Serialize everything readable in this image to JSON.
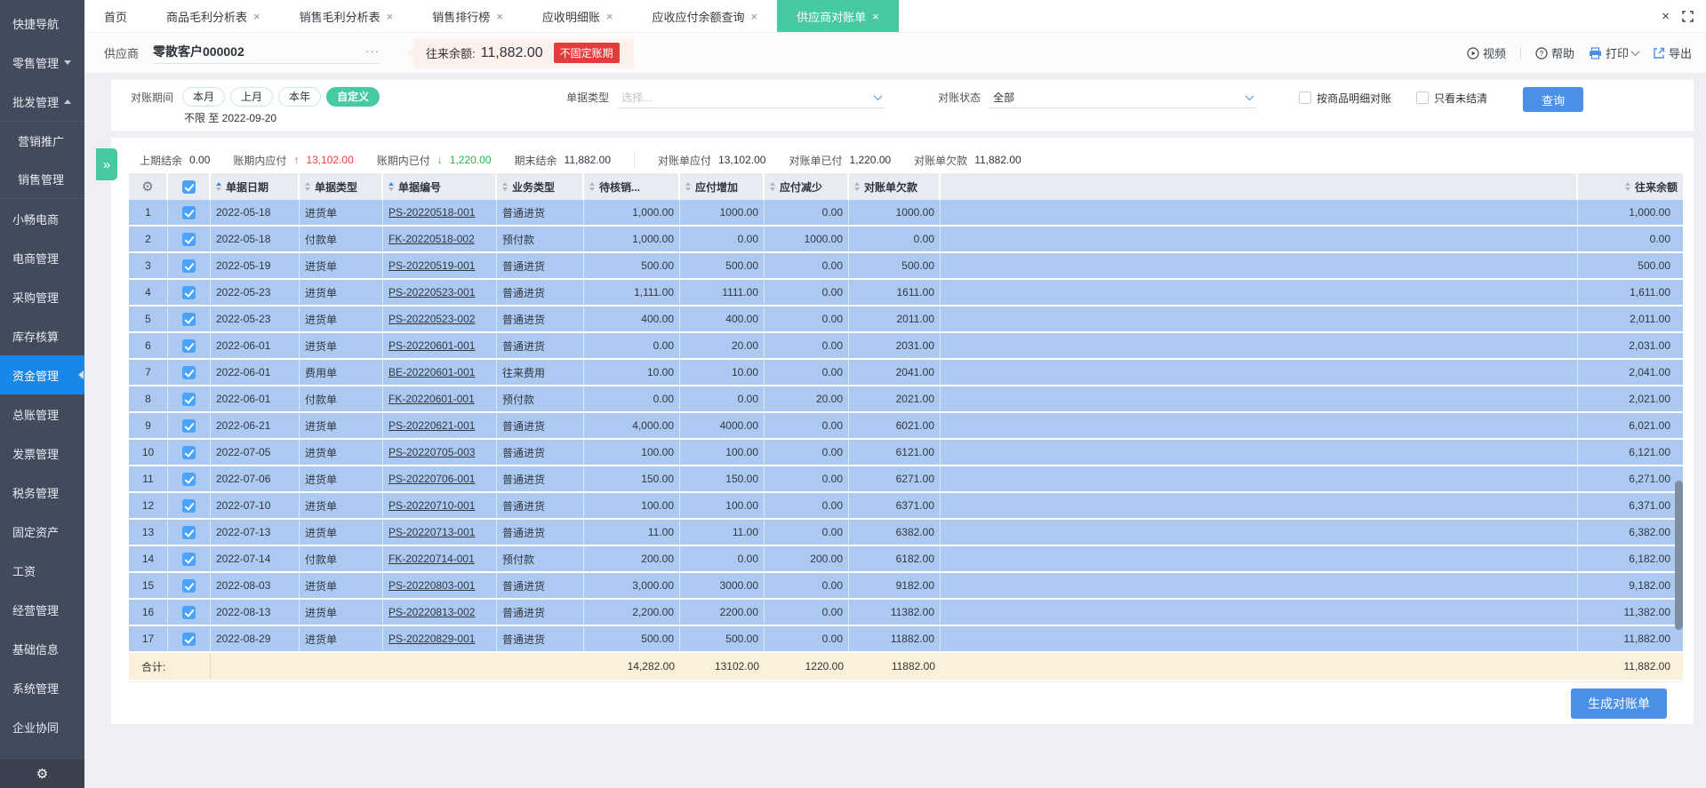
{
  "window": {
    "close": "×"
  },
  "sidebar": {
    "items": [
      {
        "label": "快捷导航",
        "type": "item"
      },
      {
        "label": "零售管理",
        "type": "group",
        "arrow": "down"
      },
      {
        "label": "批发管理",
        "type": "group",
        "arrow": "up"
      },
      {
        "label": "营销推广",
        "type": "sub",
        "pos": "first"
      },
      {
        "label": "销售管理",
        "type": "sub",
        "pos": "last"
      },
      {
        "label": "小畅电商",
        "type": "item"
      },
      {
        "label": "电商管理",
        "type": "item"
      },
      {
        "label": "采购管理",
        "type": "item"
      },
      {
        "label": "库存核算",
        "type": "item"
      },
      {
        "label": "资金管理",
        "type": "item",
        "active": true
      },
      {
        "label": "总账管理",
        "type": "item"
      },
      {
        "label": "发票管理",
        "type": "item"
      },
      {
        "label": "税务管理",
        "type": "item"
      },
      {
        "label": "固定资产",
        "type": "item"
      },
      {
        "label": "工资",
        "type": "item"
      },
      {
        "label": "经营管理",
        "type": "item"
      },
      {
        "label": "基础信息",
        "type": "item"
      },
      {
        "label": "系统管理",
        "type": "item"
      },
      {
        "label": "企业协同",
        "type": "item"
      }
    ]
  },
  "tabs": [
    {
      "label": "首页",
      "closable": false,
      "active": false
    },
    {
      "label": "商品毛利分析表",
      "closable": true,
      "active": false
    },
    {
      "label": "销售毛利分析表",
      "closable": true,
      "active": false
    },
    {
      "label": "销售排行榜",
      "closable": true,
      "active": false
    },
    {
      "label": "应收明细账",
      "closable": true,
      "active": false
    },
    {
      "label": "应收应付余额查询",
      "closable": true,
      "active": false
    },
    {
      "label": "供应商对账单",
      "closable": true,
      "active": true
    }
  ],
  "supplier_bar": {
    "label": "供应商",
    "value": "零散客户000002",
    "more": "···",
    "balance_label": "往来余额:",
    "balance_value": "11,882.00",
    "badge": "不固定账期",
    "video_label": "视频",
    "help_label": "帮助",
    "print_label": "打印",
    "export_label": "导出"
  },
  "filters": {
    "period_label": "对账期间",
    "period_options": [
      "本月",
      "上月",
      "本年"
    ],
    "period_custom": "自定义",
    "period_range": "不限 至 2022-09-20",
    "doc_type_label": "单据类型",
    "doc_type_placeholder": "选择...",
    "status_label": "对账状态",
    "status_value": "全部",
    "checkbox_detail": "按商品明细对账",
    "checkbox_unsettled": "只看未结清",
    "query_button": "查询"
  },
  "summary": {
    "items": [
      {
        "label": "上期结余",
        "value": "0.00"
      },
      {
        "label": "账期内应付",
        "value": "13,102.00",
        "trend": "up"
      },
      {
        "label": "账期内已付",
        "value": "1,220.00",
        "trend": "down"
      },
      {
        "label": "期末结余",
        "value": "11,882.00",
        "divider_after": true
      },
      {
        "label": "对账单应付",
        "value": "13,102.00"
      },
      {
        "label": "对账单已付",
        "value": "1,220.00"
      },
      {
        "label": "对账单欠款",
        "value": "11,882.00"
      }
    ]
  },
  "table": {
    "headers": [
      {
        "label": "单据日期",
        "sorted": true
      },
      {
        "label": "单据类型",
        "sorted": false
      },
      {
        "label": "单据编号",
        "sorted": true
      },
      {
        "label": "业务类型",
        "sorted": false
      },
      {
        "label": "待核销...",
        "sorted": false
      },
      {
        "label": "应付增加",
        "sorted": false
      },
      {
        "label": "应付减少",
        "sorted": false
      },
      {
        "label": "对账单欠款",
        "sorted": false
      },
      {
        "label": "往来余额",
        "sorted": false
      }
    ],
    "rows": [
      {
        "no": "1",
        "date": "2022-05-18",
        "doc_type": "进货单",
        "doc_no": "PS-20220518-001",
        "biz_type": "普通进货",
        "pending": "1,000.00",
        "increase": "1000.00",
        "decrease": "0.00",
        "owed": "1000.00",
        "balance": "1,000.00"
      },
      {
        "no": "2",
        "date": "2022-05-18",
        "doc_type": "付款单",
        "doc_no": "FK-20220518-002",
        "biz_type": "预付款",
        "pending": "1,000.00",
        "increase": "0.00",
        "decrease": "1000.00",
        "owed": "0.00",
        "balance": "0.00"
      },
      {
        "no": "3",
        "date": "2022-05-19",
        "doc_type": "进货单",
        "doc_no": "PS-20220519-001",
        "biz_type": "普通进货",
        "pending": "500.00",
        "increase": "500.00",
        "decrease": "0.00",
        "owed": "500.00",
        "balance": "500.00"
      },
      {
        "no": "4",
        "date": "2022-05-23",
        "doc_type": "进货单",
        "doc_no": "PS-20220523-001",
        "biz_type": "普通进货",
        "pending": "1,111.00",
        "increase": "1111.00",
        "decrease": "0.00",
        "owed": "1611.00",
        "balance": "1,611.00"
      },
      {
        "no": "5",
        "date": "2022-05-23",
        "doc_type": "进货单",
        "doc_no": "PS-20220523-002",
        "biz_type": "普通进货",
        "pending": "400.00",
        "increase": "400.00",
        "decrease": "0.00",
        "owed": "2011.00",
        "balance": "2,011.00"
      },
      {
        "no": "6",
        "date": "2022-06-01",
        "doc_type": "进货单",
        "doc_no": "PS-20220601-001",
        "biz_type": "普通进货",
        "pending": "0.00",
        "increase": "20.00",
        "decrease": "0.00",
        "owed": "2031.00",
        "balance": "2,031.00"
      },
      {
        "no": "7",
        "date": "2022-06-01",
        "doc_type": "费用单",
        "doc_no": "BE-20220601-001",
        "biz_type": "往来费用",
        "pending": "10.00",
        "increase": "10.00",
        "decrease": "0.00",
        "owed": "2041.00",
        "balance": "2,041.00"
      },
      {
        "no": "8",
        "date": "2022-06-01",
        "doc_type": "付款单",
        "doc_no": "FK-20220601-001",
        "biz_type": "预付款",
        "pending": "0.00",
        "increase": "0.00",
        "decrease": "20.00",
        "owed": "2021.00",
        "balance": "2,021.00"
      },
      {
        "no": "9",
        "date": "2022-06-21",
        "doc_type": "进货单",
        "doc_no": "PS-20220621-001",
        "biz_type": "普通进货",
        "pending": "4,000.00",
        "increase": "4000.00",
        "decrease": "0.00",
        "owed": "6021.00",
        "balance": "6,021.00"
      },
      {
        "no": "10",
        "date": "2022-07-05",
        "doc_type": "进货单",
        "doc_no": "PS-20220705-003",
        "biz_type": "普通进货",
        "pending": "100.00",
        "increase": "100.00",
        "decrease": "0.00",
        "owed": "6121.00",
        "balance": "6,121.00"
      },
      {
        "no": "11",
        "date": "2022-07-06",
        "doc_type": "进货单",
        "doc_no": "PS-20220706-001",
        "biz_type": "普通进货",
        "pending": "150.00",
        "increase": "150.00",
        "decrease": "0.00",
        "owed": "6271.00",
        "balance": "6,271.00"
      },
      {
        "no": "12",
        "date": "2022-07-10",
        "doc_type": "进货单",
        "doc_no": "PS-20220710-001",
        "biz_type": "普通进货",
        "pending": "100.00",
        "increase": "100.00",
        "decrease": "0.00",
        "owed": "6371.00",
        "balance": "6,371.00"
      },
      {
        "no": "13",
        "date": "2022-07-13",
        "doc_type": "进货单",
        "doc_no": "PS-20220713-001",
        "biz_type": "普通进货",
        "pending": "11.00",
        "increase": "11.00",
        "decrease": "0.00",
        "owed": "6382.00",
        "balance": "6,382.00"
      },
      {
        "no": "14",
        "date": "2022-07-14",
        "doc_type": "付款单",
        "doc_no": "FK-20220714-001",
        "biz_type": "预付款",
        "pending": "200.00",
        "increase": "0.00",
        "decrease": "200.00",
        "owed": "6182.00",
        "balance": "6,182.00"
      },
      {
        "no": "15",
        "date": "2022-08-03",
        "doc_type": "进货单",
        "doc_no": "PS-20220803-001",
        "biz_type": "普通进货",
        "pending": "3,000.00",
        "increase": "3000.00",
        "decrease": "0.00",
        "owed": "9182.00",
        "balance": "9,182.00"
      },
      {
        "no": "16",
        "date": "2022-08-13",
        "doc_type": "进货单",
        "doc_no": "PS-20220813-002",
        "biz_type": "普通进货",
        "pending": "2,200.00",
        "increase": "2200.00",
        "decrease": "0.00",
        "owed": "11382.00",
        "balance": "11,382.00"
      },
      {
        "no": "17",
        "date": "2022-08-29",
        "doc_type": "进货单",
        "doc_no": "PS-20220829-001",
        "biz_type": "普通进货",
        "pending": "500.00",
        "increase": "500.00",
        "decrease": "0.00",
        "owed": "11882.00",
        "balance": "11,882.00"
      }
    ],
    "total": {
      "label": "合计:",
      "pending": "14,282.00",
      "increase": "13102.00",
      "decrease": "1220.00",
      "owed": "11882.00",
      "balance": "11,882.00"
    }
  },
  "footer": {
    "generate_button": "生成对账单"
  },
  "colors": {
    "accent_green": "#47c9a2",
    "accent_blue": "#4b90e8",
    "row_blue": "#abc9f1",
    "total_cream": "#fbf1da",
    "alert_red": "#e23c3c"
  }
}
